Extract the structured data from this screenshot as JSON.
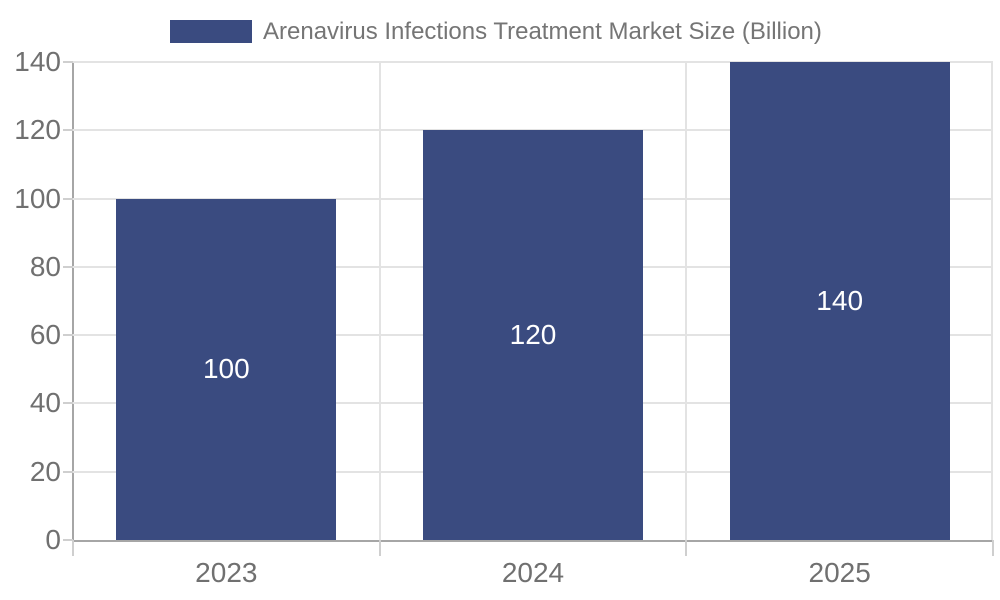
{
  "chart_data": {
    "type": "bar",
    "title": "Arenavirus Infections Treatment Market Size (Billion)",
    "categories": [
      "2023",
      "2024",
      "2025"
    ],
    "values": [
      100,
      120,
      140
    ],
    "bar_labels": [
      "100",
      "120",
      "140"
    ],
    "xlabel": "",
    "ylabel": "",
    "ylim": [
      0,
      140
    ],
    "y_ticks": [
      0,
      20,
      40,
      60,
      80,
      100,
      120,
      140
    ],
    "grid": true,
    "legend_position": "top",
    "colors": {
      "bar": "#3a4b80",
      "grid": "#e3e3e3",
      "axis": "#a6a6a6",
      "tick_mark": "#cfcfcf",
      "tick_label_text": "#707070",
      "legend_text": "#757575",
      "bar_label_text": "#ffffff",
      "background": "#ffffff"
    }
  }
}
